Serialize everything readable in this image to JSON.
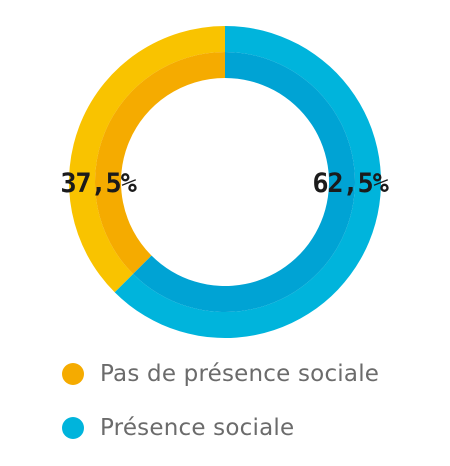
{
  "chart_data": {
    "type": "pie",
    "style": "donut",
    "slices": [
      {
        "label": "Pas de présence sociale",
        "value": 37.5,
        "display": "37,5%",
        "color_outer": "#f9c300",
        "color_inner": "#f5ab00"
      },
      {
        "label": "Présence sociale",
        "value": 62.5,
        "display": "62,5%",
        "color_outer": "#00b4dc",
        "color_inner": "#00a3d4"
      }
    ],
    "legend_position": "bottom-left"
  }
}
